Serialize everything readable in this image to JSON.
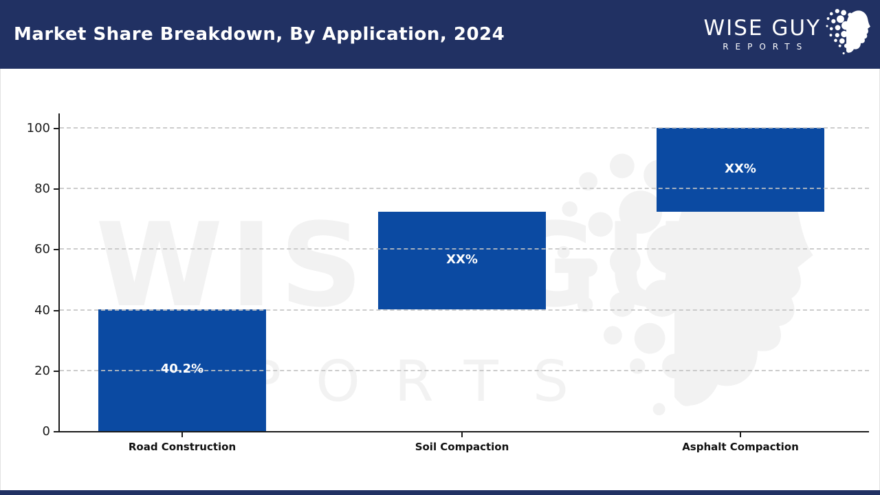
{
  "header": {
    "title": "Market Share Breakdown, By Application, 2024",
    "logo": {
      "line1": "WISE GUY",
      "line2": "REPORTS"
    }
  },
  "watermark": {
    "line1": "WISE GUY",
    "line2": "REPORTS"
  },
  "chart_data": {
    "type": "bar",
    "subtype": "floating-waterfall",
    "title": "Market Share Breakdown, By Application, 2024",
    "categories": [
      "Road Construction",
      "Soil Compaction",
      "Asphalt Compaction"
    ],
    "bars": [
      {
        "category": "Road Construction",
        "start": 0,
        "end": 40.2,
        "label": "40.2%"
      },
      {
        "category": "Soil Compaction",
        "start": 40.2,
        "end": 72.4,
        "label": "XX%"
      },
      {
        "category": "Asphalt Compaction",
        "start": 72.4,
        "end": 100,
        "label": "XX%"
      }
    ],
    "yticks": [
      0,
      20,
      40,
      60,
      80,
      100
    ],
    "ylim": [
      0,
      105
    ],
    "xlabel": "",
    "ylabel": "",
    "grid": "horizontal-dashed",
    "legend": "none",
    "bar_color": "#0b4aa2",
    "bar_label_color": "#ffffff"
  },
  "colors": {
    "header_bg": "#213163",
    "footer_bg": "#213163",
    "axis": "#1a1a1a",
    "gridline": "#c8c8c8",
    "watermark": "#f2f2f2"
  }
}
